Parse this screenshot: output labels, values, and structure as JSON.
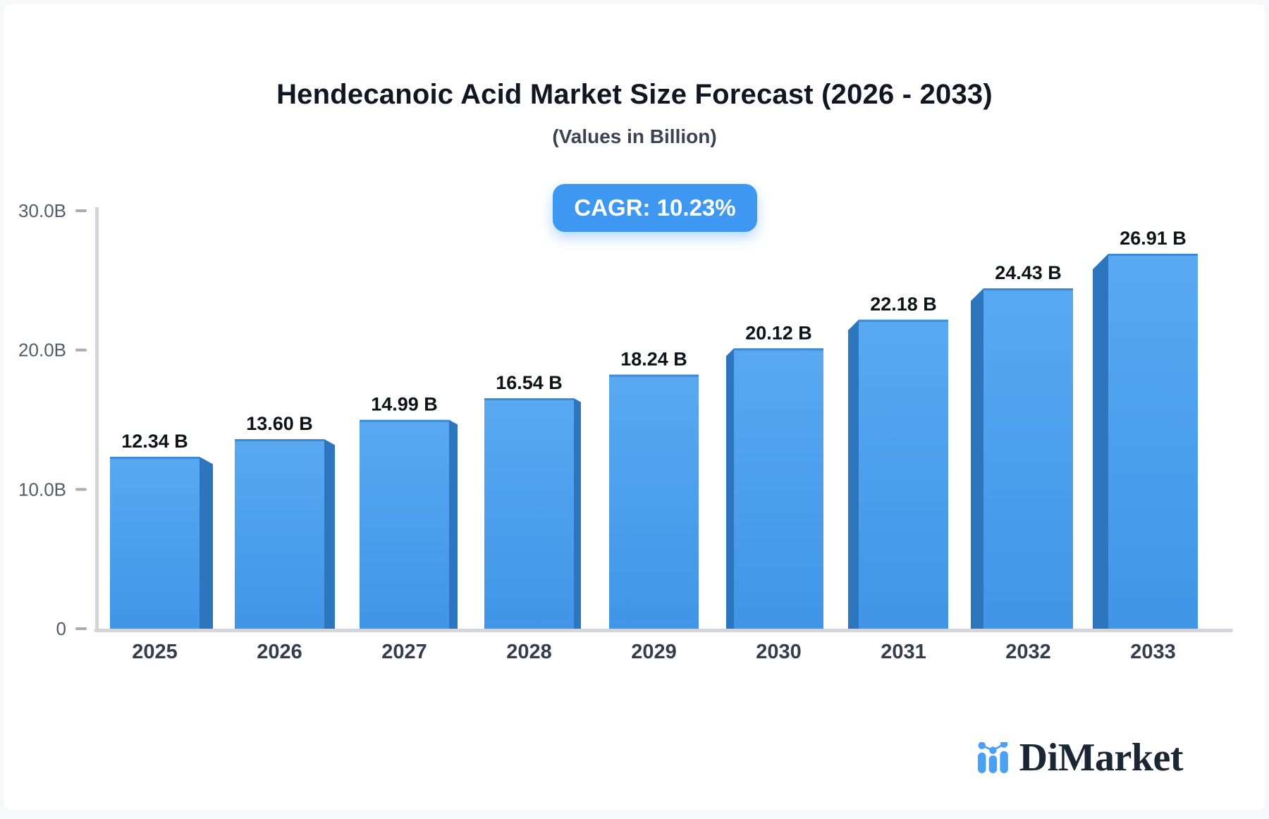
{
  "header": {
    "title": "Hendecanoic Acid Market Size Forecast (2026 - 2033)",
    "subtitle": "(Values in Billion)",
    "cagr_badge": "CAGR: 10.23%"
  },
  "chart_data": {
    "type": "bar",
    "title": "Hendecanoic Acid Market Size Forecast (2026 - 2033)",
    "subtitle": "(Values in Billion)",
    "unit": "Billion",
    "categories": [
      "2025",
      "2026",
      "2027",
      "2028",
      "2029",
      "2030",
      "2031",
      "2032",
      "2033"
    ],
    "values": [
      12.34,
      13.6,
      14.99,
      16.54,
      18.24,
      20.12,
      22.18,
      24.43,
      26.91
    ],
    "value_labels": [
      "12.34 B",
      "13.60 B",
      "14.99 B",
      "16.54 B",
      "18.24 B",
      "20.12 B",
      "22.18 B",
      "24.43 B",
      "26.91 B"
    ],
    "cagr_percent": "10.23%",
    "ylim": [
      0,
      30
    ],
    "yticks": [
      {
        "value": 30,
        "label": "30.0B"
      },
      {
        "value": 20,
        "label": "20.0B"
      },
      {
        "value": 10,
        "label": "10.0B"
      },
      {
        "value": 0,
        "label": "0"
      }
    ],
    "grid": false,
    "legend": "none",
    "bar_style": "3d-extruded",
    "colors": {
      "bar_face_top": "#58a9f1",
      "bar_face_bottom": "#4095e8",
      "bar_side": "#2d76bd",
      "bar_top_edge": "#3b89d7",
      "axis_line": "#d2d6db",
      "tick_dash": "#a6adb5"
    }
  },
  "badge_colors": {
    "background": "#3e97f1",
    "text": "#ffffff"
  },
  "branding": {
    "logo_text": "DiMarket",
    "logo_icon": "mini-bar-chart-icon",
    "icon_color": "#4aa0f2",
    "text_color": "#1b2634"
  }
}
